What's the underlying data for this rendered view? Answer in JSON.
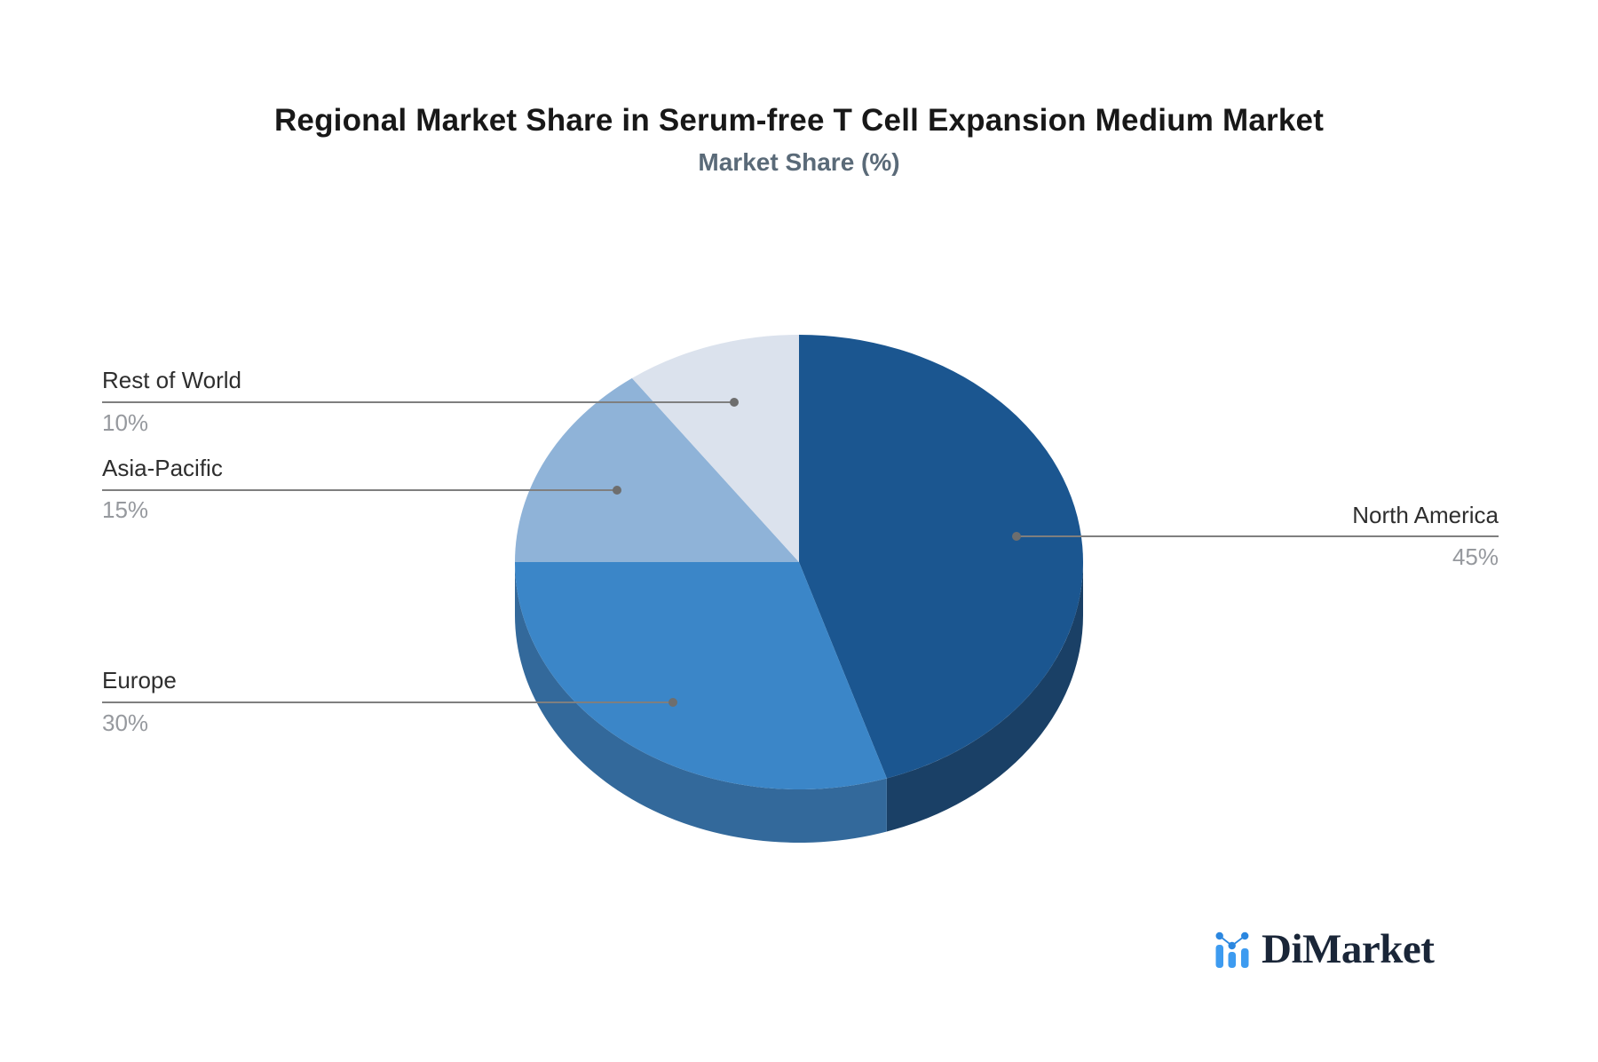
{
  "header": {
    "title": "Regional Market Share in Serum-free T Cell Expansion Medium Market",
    "subtitle": "Market Share (%)"
  },
  "chart_data": {
    "type": "pie",
    "style": "3d-pie",
    "title": "Regional Market Share in Serum-free T Cell Expansion Medium Market",
    "subtitle": "Market Share (%)",
    "unit": "%",
    "start_angle_deg": 0,
    "direction": "clockwise",
    "legend_position": "callout-labels",
    "series": [
      {
        "name": "North America",
        "value": 45,
        "label": "45%",
        "color": "#1b5690",
        "side_color": "#1a4066"
      },
      {
        "name": "Europe",
        "value": 30,
        "label": "30%",
        "color": "#3b86c8",
        "side_color": "#33699b"
      },
      {
        "name": "Asia-Pacific",
        "value": 15,
        "label": "15%",
        "color": "#8fb3d8",
        "side_color": "#7da0c4"
      },
      {
        "name": "Rest of World",
        "value": 10,
        "label": "10%",
        "color": "#dbe2ed",
        "side_color": "#c2cbd9"
      }
    ],
    "callout_line_color": "#7f7f7f",
    "callout_dot_color": "#6e6e6e"
  },
  "branding": {
    "logo_text": "DiMarket",
    "logo_icon": "bar-line-chart-icon",
    "logo_icon_color": "#3d9bf0",
    "logo_accent_color": "#2b87e0"
  }
}
